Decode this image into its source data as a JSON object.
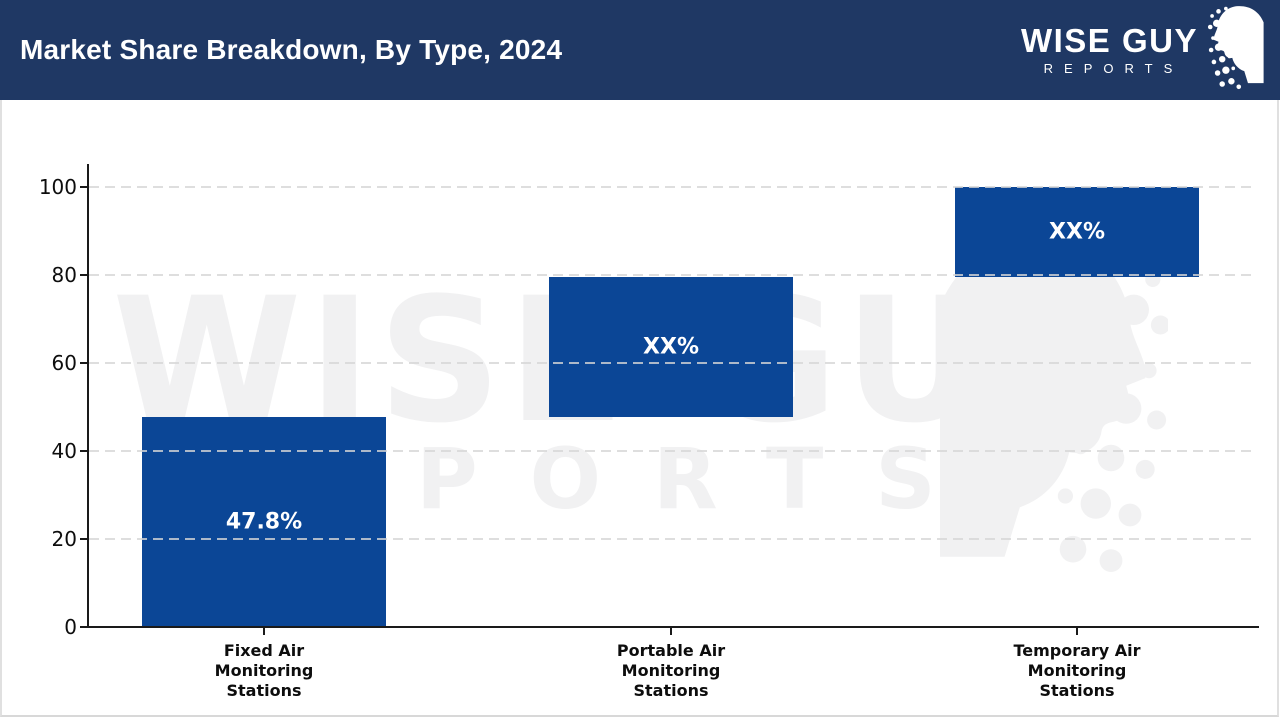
{
  "header": {
    "title": "Market Share Breakdown, By Type, 2024",
    "brand_line1": "WISE GUY",
    "brand_line2": "REPORTS"
  },
  "watermark": {
    "line1": "WISE GUY",
    "line2": "REPORTS"
  },
  "colors": {
    "header_bg": "#1F3864",
    "bar": "#0B4696",
    "bar_label": "#ffffff",
    "watermark": "#f1f1f2",
    "gridline": "#d6d6d6",
    "axis": "#1a1a1a"
  },
  "chart_data": {
    "type": "bar",
    "subtype": "waterfall",
    "title": "Market Share Breakdown, By Type, 2024",
    "xlabel": "",
    "ylabel": "",
    "categories": [
      [
        "Fixed Air",
        "Monitoring",
        "Stations"
      ],
      [
        "Portable Air",
        "Monitoring",
        "Stations"
      ],
      [
        "Temporary Air",
        "Monitoring",
        "Stations"
      ]
    ],
    "segments": [
      {
        "start": 0,
        "end": 47.8,
        "label": "47.8%"
      },
      {
        "start": 47.8,
        "end": 79.5,
        "label": "XX%"
      },
      {
        "start": 79.5,
        "end": 100,
        "label": "XX%"
      }
    ],
    "y_ticks": [
      0,
      20,
      40,
      60,
      80,
      100
    ],
    "ylim": [
      0,
      105
    ],
    "grid": "horizontal-dashed",
    "legend": "none"
  }
}
